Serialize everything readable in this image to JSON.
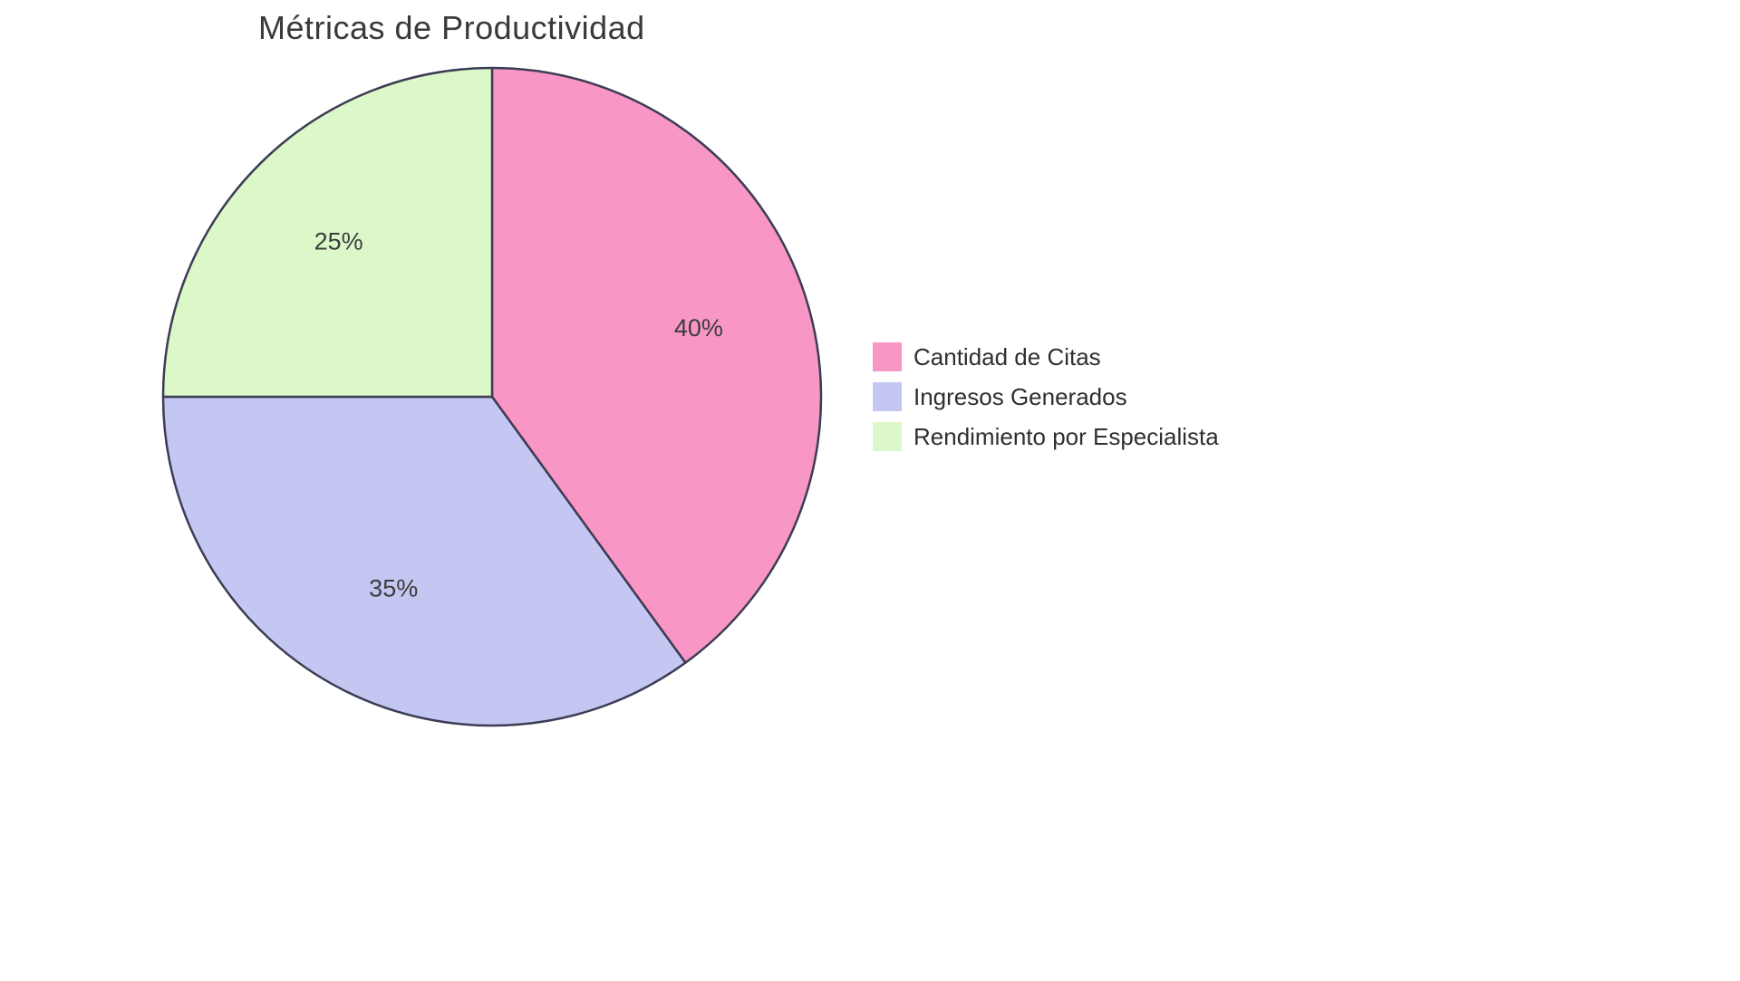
{
  "chart_data": {
    "type": "pie",
    "title": "Métricas de Productividad",
    "labels": [
      "Cantidad de Citas",
      "Ingresos Generados",
      "Rendimiento por Especialista"
    ],
    "values": [
      40,
      35,
      25
    ],
    "pct_labels": [
      "40%",
      "35%",
      "25%"
    ],
    "colors": [
      "#F896C6",
      "#C4C7F2",
      "#DCF8C8"
    ],
    "stroke_color": "#3C3C55",
    "legend_position": "right",
    "start_angle_deg": 0,
    "direction": "clockwise"
  }
}
